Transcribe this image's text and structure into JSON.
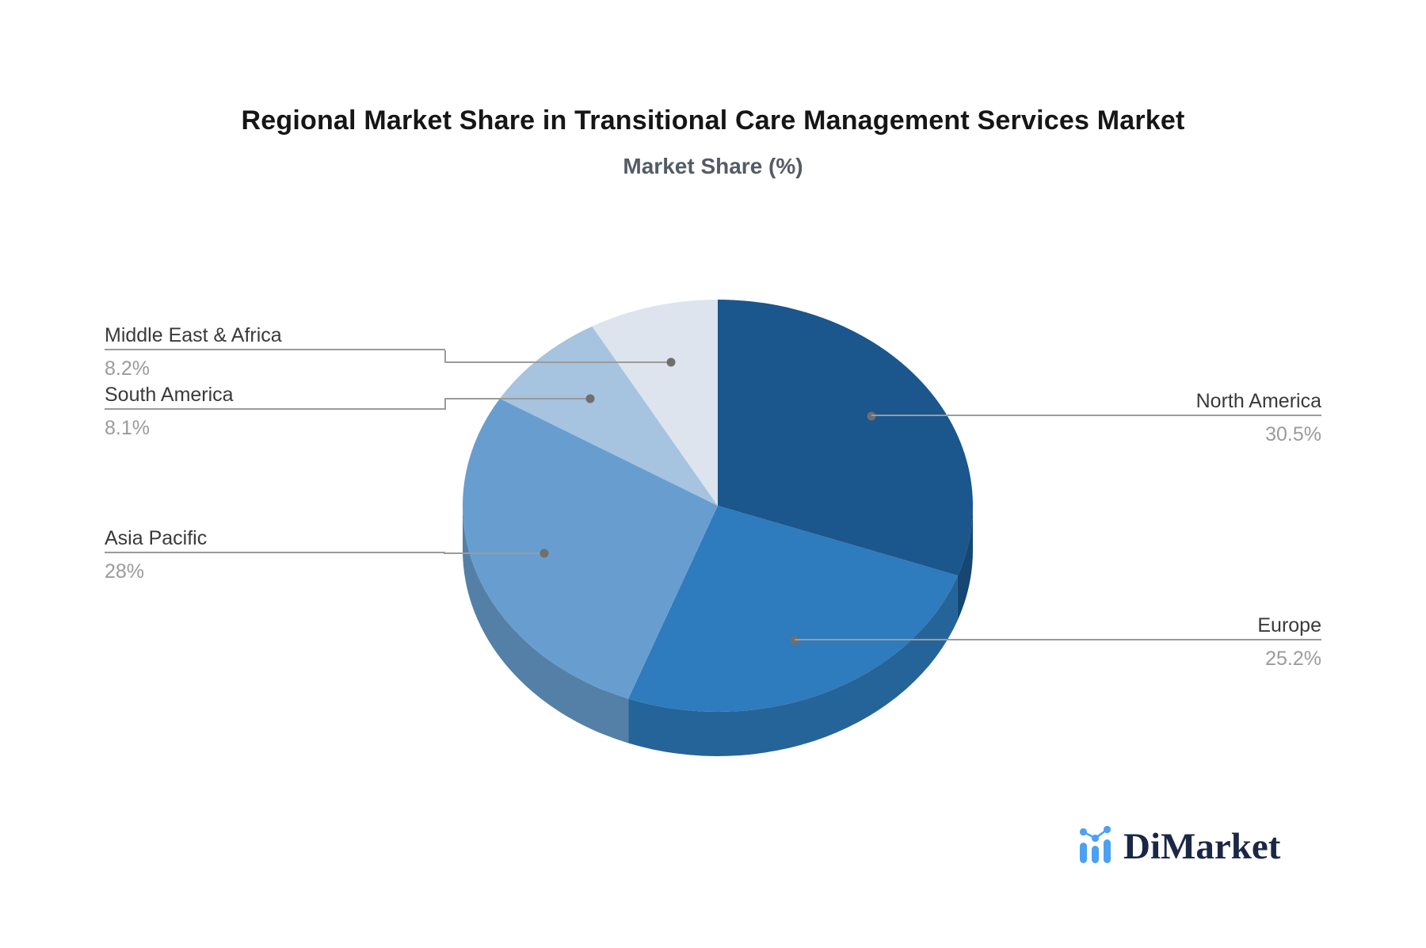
{
  "chart_data": {
    "type": "pie",
    "style": "3d",
    "title": "Regional Market Share in Transitional Care Management Services Market",
    "subtitle": "Market Share (%)",
    "start_angle_deg": 0,
    "direction": "clockwise",
    "legend": "none",
    "categories": [
      "North America",
      "Europe",
      "Asia Pacific",
      "South America",
      "Middle East & Africa"
    ],
    "values": [
      30.5,
      25.2,
      28,
      8.1,
      8.2
    ],
    "slices": [
      {
        "name": "North America",
        "value": 30.5,
        "label": "30.5%",
        "color": "#1B568D"
      },
      {
        "name": "Europe",
        "value": 25.2,
        "label": "25.2%",
        "color": "#2E7BBD"
      },
      {
        "name": "Asia Pacific",
        "value": 28,
        "label": "28%",
        "color": "#689ECF"
      },
      {
        "name": "South America",
        "value": 8.1,
        "label": "8.1%",
        "color": "#A6C3DF"
      },
      {
        "name": "Middle East & Africa",
        "value": 8.2,
        "label": "8.2%",
        "color": "#DDE4EE"
      }
    ],
    "leader_line_color": "#9b9b9b",
    "leader_dot_color": "#6f6f6f",
    "label_text_color": "#3a3a3a",
    "value_text_color": "#9b9b9b"
  },
  "logo": {
    "text": "DiMarket",
    "icon": "bar-line-chart-icon",
    "icon_color": "#4BA1F2",
    "text_color": "#1a2845"
  }
}
